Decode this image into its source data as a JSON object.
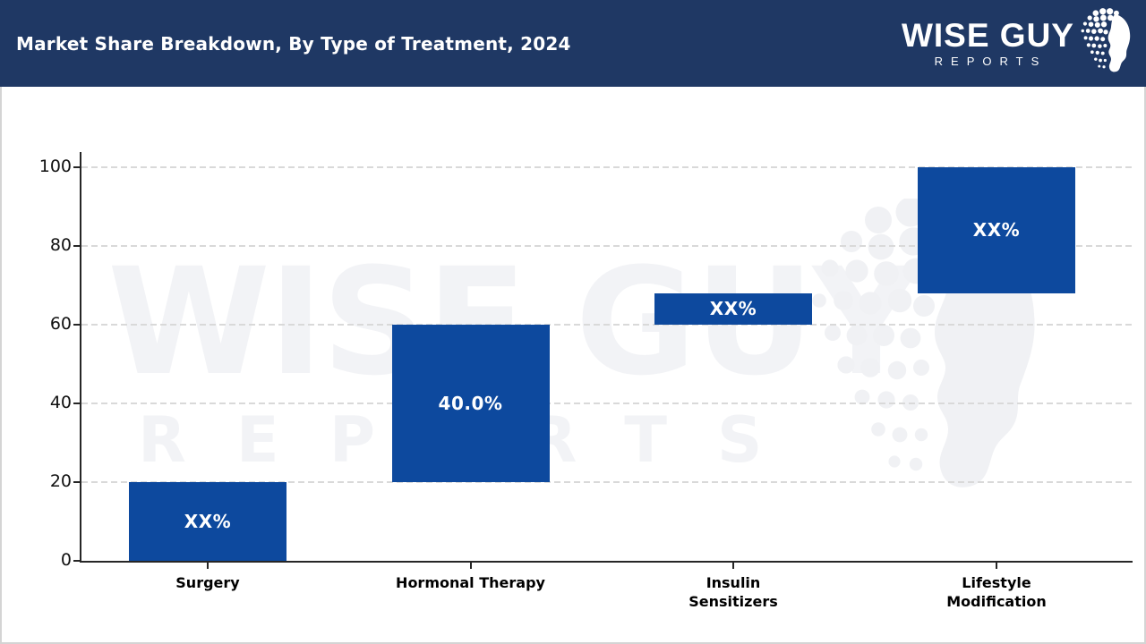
{
  "header": {
    "title": "Market Share Breakdown, By Type of Treatment, 2024",
    "bg_color": "#1f3864",
    "logo": {
      "line1": "WISE GUY",
      "line2": "REPORTS"
    }
  },
  "watermark": {
    "line1": "WISE GUY",
    "line2": "REPORTS"
  },
  "chart_data": {
    "type": "bar",
    "subtype": "waterfall",
    "title": "Market Share Breakdown, By Type of Treatment, 2024",
    "categories": [
      "Surgery",
      "Hormonal Therapy",
      "Insulin Sensitizers",
      "Lifestyle Modification"
    ],
    "bars": [
      {
        "category_lines": [
          "Surgery"
        ],
        "start": 0,
        "end": 20,
        "value": 20,
        "label": "XX%"
      },
      {
        "category_lines": [
          "Hormonal Therapy"
        ],
        "start": 20,
        "end": 60,
        "value": 40,
        "label": "40.0%"
      },
      {
        "category_lines": [
          "Insulin",
          "Sensitizers"
        ],
        "start": 60,
        "end": 68,
        "value": 8,
        "label": "XX%"
      },
      {
        "category_lines": [
          "Lifestyle",
          "Modification"
        ],
        "start": 68,
        "end": 100,
        "value": 32,
        "label": "XX%"
      }
    ],
    "yticks": [
      0,
      20,
      40,
      60,
      80,
      100
    ],
    "ylim": [
      0,
      100
    ],
    "xlabel": "",
    "ylabel": "",
    "bar_color": "#0d499e",
    "grid": "dashed-horizontal",
    "gridline_color": "#d9d9d9",
    "legend": "none"
  }
}
